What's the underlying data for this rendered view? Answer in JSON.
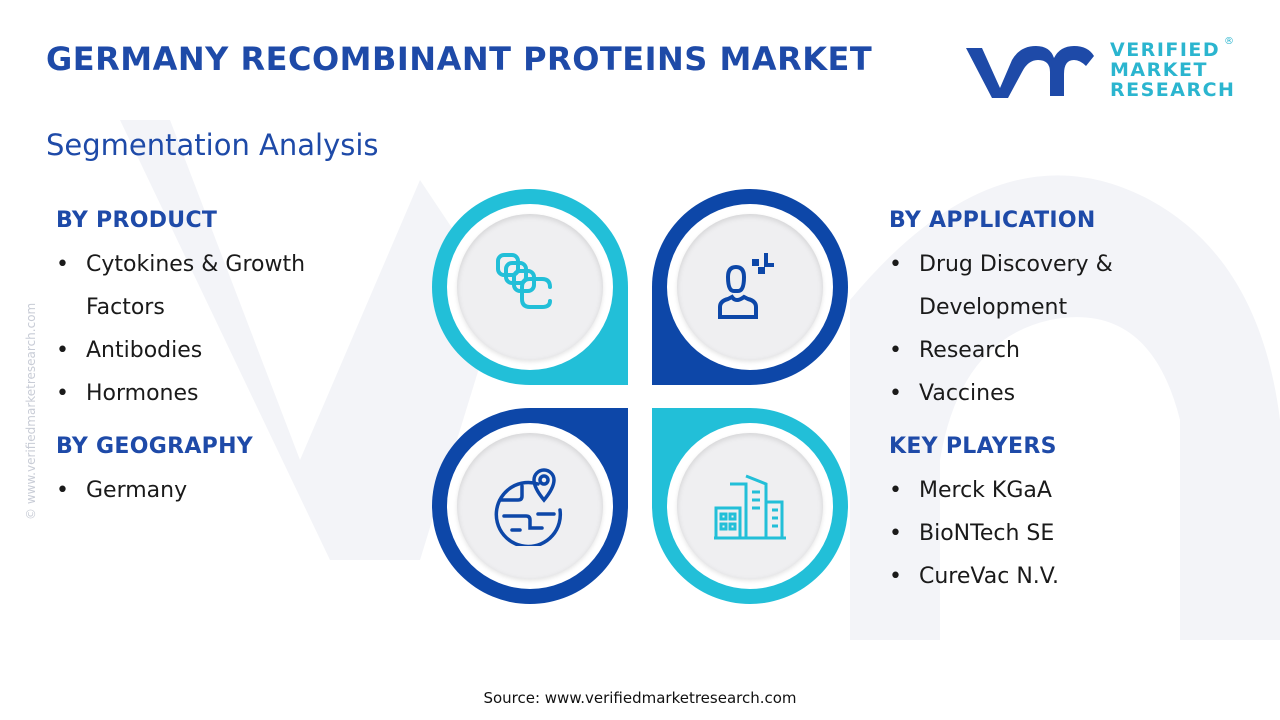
{
  "header": {
    "title": "GERMANY RECOMBINANT PROTEINS MARKET",
    "subtitle": "Segmentation Analysis"
  },
  "logo": {
    "mark": "vmr",
    "line1": "VERIFIED",
    "line2": "MARKET",
    "line3": "RESEARCH",
    "registered": "®"
  },
  "watermark": "© www.verifiedmarketresearch.com",
  "colors": {
    "primary": "#1e4aa8",
    "accent": "#22bfd8",
    "dark_blue": "#0d47a8"
  },
  "sections": {
    "product": {
      "heading": "BY PRODUCT",
      "items": [
        "Cytokines & Growth Factors",
        "Antibodies",
        "Hormones"
      ]
    },
    "geography": {
      "heading": "BY GEOGRAPHY",
      "items": [
        "Germany"
      ]
    },
    "application": {
      "heading": "BY APPLICATION",
      "items": [
        "Drug Discovery & Development",
        "Research",
        "Vaccines"
      ]
    },
    "players": {
      "heading": "KEY PLAYERS",
      "items": [
        "Merck KGaA",
        "BioNTech SE",
        "CureVac N.V."
      ]
    }
  },
  "icons": [
    "protein-chain-icon",
    "researcher-icon",
    "globe-location-icon",
    "buildings-icon"
  ],
  "footer": {
    "source": "Source: www.verifiedmarketresearch.com"
  }
}
